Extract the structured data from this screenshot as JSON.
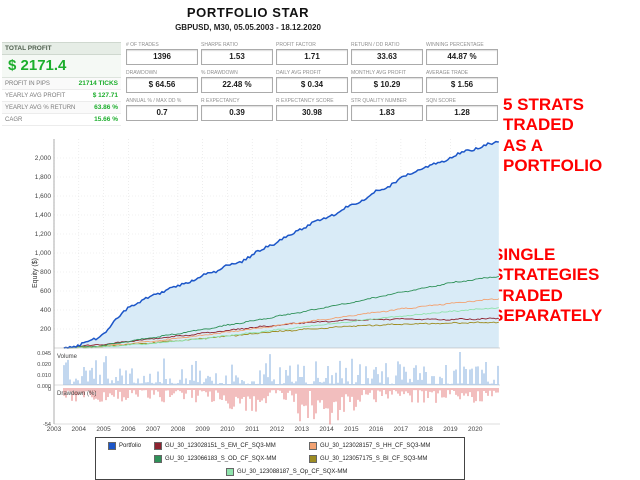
{
  "header": {
    "title": "PORTFOLIO STAR",
    "subtitle": "GBPUSD, M30, 05.05.2003 - 18.12.2020"
  },
  "colors": {
    "profit_green": "#1cae2c",
    "annotation_red": "#ff0000",
    "portfolio_blue": "#1c56c8"
  },
  "stats_panel": {
    "total_profit_label": "TOTAL PROFIT",
    "total_profit_value": "$ 2171.4",
    "rows": [
      {
        "label": "PROFIT IN PIPS",
        "value": "21714 TICKS"
      },
      {
        "label": "YEARLY AVG PROFIT",
        "value": "$ 127.71"
      },
      {
        "label": "YEARLY AVG % RETURN",
        "value": "63.86 %"
      },
      {
        "label": "CAGR",
        "value": "15.66 %"
      }
    ]
  },
  "metrics": {
    "cells": [
      {
        "label": "# OF TRADES",
        "value": "1396"
      },
      {
        "label": "SHARPE RATIO",
        "value": "1.53"
      },
      {
        "label": "PROFIT FACTOR",
        "value": "1.71"
      },
      {
        "label": "RETURN / DD RATIO",
        "value": "33.63"
      },
      {
        "label": "WINNING PERCENTAGE",
        "value": "44.87 %"
      },
      {
        "label": "DRAWDOWN",
        "value": "$ 64.56"
      },
      {
        "label": "% DRAWDOWN",
        "value": "22.48 %"
      },
      {
        "label": "DAILY AVG PROFIT",
        "value": "$ 0.34"
      },
      {
        "label": "MONTHLY AVG PROFIT",
        "value": "$ 10.29"
      },
      {
        "label": "AVERAGE TRADE",
        "value": "$ 1.56"
      },
      {
        "label": "ANNUAL % / MAX DD %",
        "value": "0.7"
      },
      {
        "label": "R EXPECTANCY",
        "value": "0.39"
      },
      {
        "label": "R EXPECTANCY SCORE",
        "value": "30.98"
      },
      {
        "label": "STR QUALITY NUMBER",
        "value": "1.83"
      },
      {
        "label": "SQN SCORE",
        "value": "1.28"
      }
    ]
  },
  "annotations": {
    "right_top": "5 STRATS\nTRADED\nAS A\nPORTFOLIO",
    "right_bottom": "SINGLE\nSTRATEGIES\nTRADED\nSEPARATELY"
  },
  "chart_data": {
    "type": "line",
    "title": "",
    "ylabel": "Equity ($)",
    "xlim": [
      2003,
      2021
    ],
    "ylim": [
      0,
      2200
    ],
    "x_ticks": [
      2003,
      2004,
      2005,
      2006,
      2007,
      2008,
      2009,
      2010,
      2011,
      2012,
      2013,
      2014,
      2015,
      2016,
      2017,
      2018,
      2019,
      2020
    ],
    "y_ticks": [
      200,
      400,
      600,
      800,
      1000,
      1200,
      1400,
      1600,
      1800,
      2000
    ],
    "grid": true,
    "series": [
      {
        "name": "Portfolio",
        "color": "#1c56c8",
        "fill": "#d9ebf7",
        "x": [
          2003.4,
          2004,
          2004.5,
          2005,
          2005.5,
          2006,
          2006.5,
          2007,
          2007.5,
          2008,
          2008.5,
          2009,
          2009.5,
          2010,
          2010.5,
          2011,
          2011.5,
          2012,
          2012.5,
          2013,
          2013.5,
          2014,
          2014.5,
          2015,
          2015.5,
          2016,
          2016.5,
          2017,
          2017.5,
          2018,
          2018.5,
          2019,
          2019.5,
          2020,
          2020.95
        ],
        "y": [
          0,
          30,
          70,
          150,
          300,
          430,
          480,
          555,
          600,
          655,
          705,
          760,
          810,
          870,
          905,
          980,
          1050,
          1120,
          1185,
          1260,
          1320,
          1380,
          1430,
          1500,
          1565,
          1650,
          1705,
          1780,
          1850,
          1900,
          1950,
          2005,
          2060,
          2100,
          2171.4
        ]
      },
      {
        "name": "GU_30_123028151_S_EM_CF_SQ3-MM",
        "color": "#8e2330",
        "x": [
          2003.4,
          2005,
          2007,
          2009,
          2011,
          2013,
          2015,
          2017,
          2019,
          2020.95
        ],
        "y": [
          0,
          40,
          95,
          155,
          215,
          265,
          295,
          305,
          300,
          310
        ]
      },
      {
        "name": "GU_30_123028157_S_HH_CF_SQ3-MM",
        "color": "#f2a272",
        "x": [
          2003.4,
          2005,
          2007,
          2009,
          2011,
          2013,
          2015,
          2017,
          2019,
          2020.95
        ],
        "y": [
          0,
          20,
          70,
          135,
          200,
          270,
          340,
          410,
          470,
          520
        ]
      },
      {
        "name": "GU_30_123066183_S_OD_CF_SQX-MM",
        "color": "#2e9158",
        "x": [
          2003.4,
          2005,
          2007,
          2009,
          2011,
          2013,
          2015,
          2017,
          2019,
          2020.95
        ],
        "y": [
          0,
          25,
          110,
          195,
          285,
          380,
          480,
          585,
          685,
          755
        ]
      },
      {
        "name": "GU_30_123057175_S_BI_CF_SQ3-MM",
        "color": "#9d8c21",
        "x": [
          2003.4,
          2005,
          2007,
          2009,
          2011,
          2013,
          2015,
          2017,
          2019,
          2020.95
        ],
        "y": [
          0,
          15,
          55,
          100,
          150,
          195,
          230,
          250,
          262,
          272
        ]
      },
      {
        "name": "GU_30_123088187_S_Op_CF_SQX-MM",
        "color": "#8fe3ac",
        "x": [
          2003.4,
          2005,
          2007,
          2009,
          2011,
          2013,
          2015,
          2017,
          2019,
          2020.95
        ],
        "y": [
          0,
          10,
          50,
          100,
          160,
          220,
          280,
          335,
          385,
          425
        ]
      }
    ],
    "volume": {
      "label": "Volume",
      "y_ticks": [
        "0.045",
        "0.020",
        "0.010",
        "0.000"
      ],
      "color": "#79a7dc"
    },
    "drawdown": {
      "label": "Drawdown (%)",
      "y_ticks": [
        "0",
        "-54"
      ],
      "min": -54,
      "color": "#e15f5f"
    }
  },
  "legend": {
    "items": [
      {
        "label": "Portfolio",
        "color": "#1c56c8"
      },
      {
        "label": "GU_30_123028151_S_EM_CF_SQ3-MM",
        "color": "#8e2330"
      },
      {
        "label": "GU_30_123028157_S_HH_CF_SQ3-MM",
        "color": "#f2a272"
      },
      {
        "label": "GU_30_123066183_S_OD_CF_SQX-MM",
        "color": "#2e9158"
      },
      {
        "label": "GU_30_123057175_S_BI_CF_SQ3-MM",
        "color": "#9d8c21"
      },
      {
        "label": "GU_30_123088187_S_Op_CF_SQX-MM",
        "color": "#8fe3ac"
      }
    ]
  }
}
